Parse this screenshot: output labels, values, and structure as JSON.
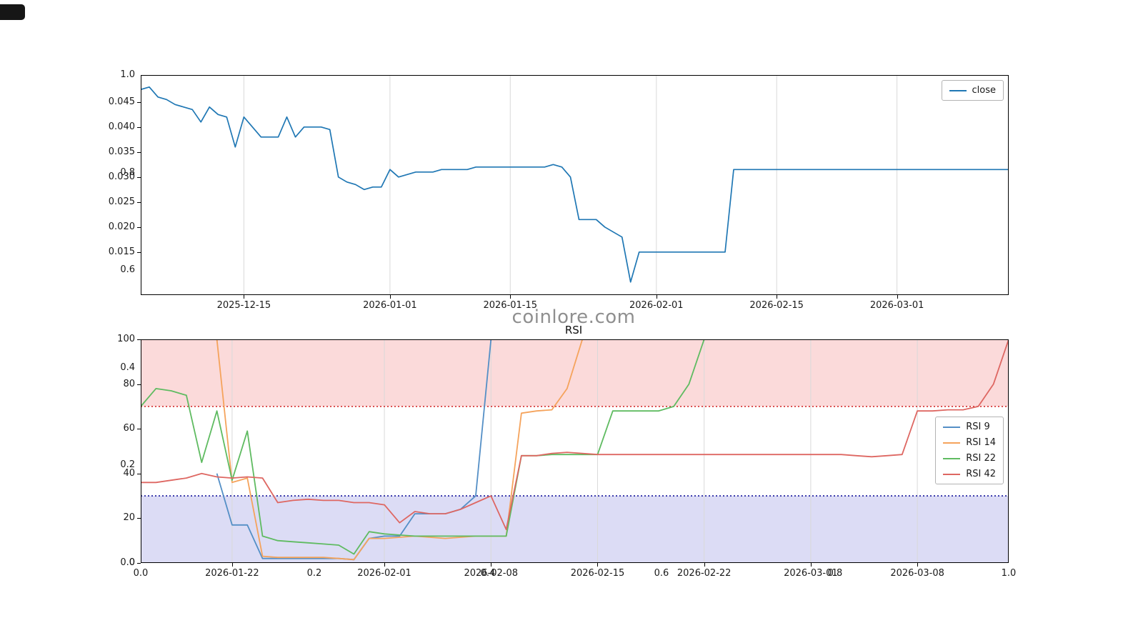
{
  "watermark": "coinlore.com",
  "page": {
    "background": "#ffffff"
  },
  "chart_data": [
    {
      "type": "line",
      "name": "price",
      "legend_label": "close",
      "line_color": "#1f77b4",
      "grid": "vertical",
      "legend_position": "top-right",
      "x_start_date": "2025-12-03",
      "x_interval": "daily",
      "x_tick_labels": [
        "2025-12-15",
        "2026-01-01",
        "2026-01-15",
        "2026-02-01",
        "2026-02-15",
        "2026-03-01"
      ],
      "y_tick_labels": [
        "0.015",
        "0.020",
        "0.025",
        "0.030",
        "0.035",
        "0.040",
        "0.045"
      ],
      "y_tick_values": [
        0.015,
        0.02,
        0.025,
        0.03,
        0.035,
        0.04,
        0.045
      ],
      "ylim": [
        0.0064,
        0.0504
      ],
      "values": [
        0.0475,
        0.048,
        0.046,
        0.0455,
        0.0445,
        0.044,
        0.0435,
        0.041,
        0.044,
        0.0425,
        0.042,
        0.036,
        0.042,
        0.04,
        0.038,
        0.038,
        0.038,
        0.042,
        0.038,
        0.04,
        0.04,
        0.04,
        0.0395,
        0.03,
        0.029,
        0.0285,
        0.0275,
        0.028,
        0.028,
        0.0315,
        0.03,
        0.0305,
        0.031,
        0.031,
        0.031,
        0.0315,
        0.0315,
        0.0315,
        0.0315,
        0.032,
        0.032,
        0.032,
        0.032,
        0.032,
        0.032,
        0.032,
        0.032,
        0.032,
        0.0325,
        0.032,
        0.03,
        0.0215,
        0.0215,
        0.0215,
        0.02,
        0.019,
        0.018,
        0.009,
        0.015,
        0.015,
        0.015,
        0.015,
        0.015,
        0.015,
        0.015,
        0.015,
        0.015,
        0.015,
        0.015,
        0.0315,
        0.0315,
        0.0315,
        0.0315,
        0.0315,
        0.0315,
        0.0315,
        0.0315,
        0.0315,
        0.0315,
        0.0315,
        0.0315,
        0.0315,
        0.0315,
        0.0315,
        0.0315,
        0.0315,
        0.0315,
        0.0315,
        0.0315,
        0.0315,
        0.0315,
        0.0315,
        0.0315,
        0.0315,
        0.0315,
        0.0315,
        0.0315,
        0.0315,
        0.0315,
        0.0315,
        0.0315,
        0.0315
      ]
    },
    {
      "type": "line",
      "name": "rsi",
      "title": "RSI",
      "grid": "vertical",
      "legend_position": "right",
      "x_start_date": "2026-01-16",
      "x_interval": "daily",
      "x_tick_labels": [
        "2026-01-22",
        "2026-02-01",
        "2026-02-08",
        "2026-02-15",
        "2026-02-22",
        "2026-03-01",
        "2026-03-08"
      ],
      "y_tick_labels": [
        "0",
        "20",
        "40",
        "60",
        "80",
        "100"
      ],
      "y_tick_values": [
        0,
        20,
        40,
        60,
        80,
        100
      ],
      "ylim": [
        0,
        100
      ],
      "overbought": {
        "level": 70,
        "line_color": "#d32f2f",
        "band_color": "#fbdada"
      },
      "oversold": {
        "level": 30,
        "line_color": "#14149b",
        "band_color": "#dcdcf5"
      },
      "series": [
        {
          "name": "RSI 9",
          "color": "#548fc6",
          "values": [
            null,
            null,
            null,
            null,
            null,
            40,
            17,
            17,
            2,
            2,
            2,
            2,
            2,
            2,
            1.5,
            11,
            12,
            12,
            22,
            22,
            22,
            24,
            30,
            100,
            null,
            null,
            null,
            null,
            null,
            null,
            null,
            null,
            null,
            null,
            null,
            null,
            null,
            null,
            null,
            null,
            null,
            null,
            null,
            null,
            null,
            null,
            null,
            null,
            null,
            null,
            null,
            null,
            null,
            null,
            null,
            null,
            null,
            null
          ]
        },
        {
          "name": "RSI 14",
          "color": "#f5a35c",
          "values": [
            null,
            null,
            null,
            null,
            null,
            100,
            36,
            38,
            3,
            2.5,
            2.5,
            2.5,
            2.5,
            2,
            1.5,
            11,
            11,
            11.5,
            12,
            11.5,
            11,
            11.5,
            12,
            12,
            12,
            67,
            68,
            68.5,
            78,
            100,
            null,
            null,
            null,
            null,
            null,
            null,
            null,
            null,
            null,
            null,
            null,
            null,
            null,
            null,
            null,
            null,
            null,
            null,
            null,
            null,
            null,
            null,
            null,
            null,
            null,
            null,
            null,
            null
          ]
        },
        {
          "name": "RSI 22",
          "color": "#5fbb61",
          "values": [
            70,
            78,
            77,
            75,
            45,
            68,
            37,
            59,
            12,
            10,
            9.5,
            9,
            8.5,
            8,
            4,
            14,
            13,
            12.5,
            12,
            12,
            12,
            12,
            12,
            12,
            12,
            48,
            48,
            48.5,
            48.5,
            48.5,
            48.5,
            68,
            68,
            68,
            68,
            70,
            80,
            100,
            null,
            null,
            null,
            null,
            null,
            null,
            null,
            null,
            null,
            null,
            null,
            null,
            null,
            null,
            null,
            null,
            null,
            null,
            null,
            null
          ]
        },
        {
          "name": "RSI 42",
          "color": "#de6762",
          "values": [
            36,
            36,
            37,
            38,
            40,
            38.5,
            38,
            38.5,
            38,
            27,
            28,
            28.5,
            28,
            28,
            27,
            27,
            26,
            18,
            23,
            22,
            22,
            24,
            27,
            30,
            15,
            48,
            48,
            49,
            49.5,
            49,
            48.5,
            48.5,
            48.5,
            48.5,
            48.5,
            48.5,
            48.5,
            48.5,
            48.5,
            48.5,
            48.5,
            48.5,
            48.5,
            48.5,
            48.5,
            48.5,
            48.5,
            48,
            47.5,
            48,
            48.5,
            68,
            68,
            68.5,
            68.5,
            70,
            80,
            100
          ]
        }
      ]
    }
  ],
  "overlay_axis": {
    "y_tick_labels": [
      "0.0",
      "0.2",
      "0.4",
      "0.6",
      "0.8",
      "1.0"
    ],
    "x_tick_labels": [
      "0.0",
      "0.2",
      "0.4",
      "0.6",
      "0.8",
      "1.0"
    ]
  }
}
